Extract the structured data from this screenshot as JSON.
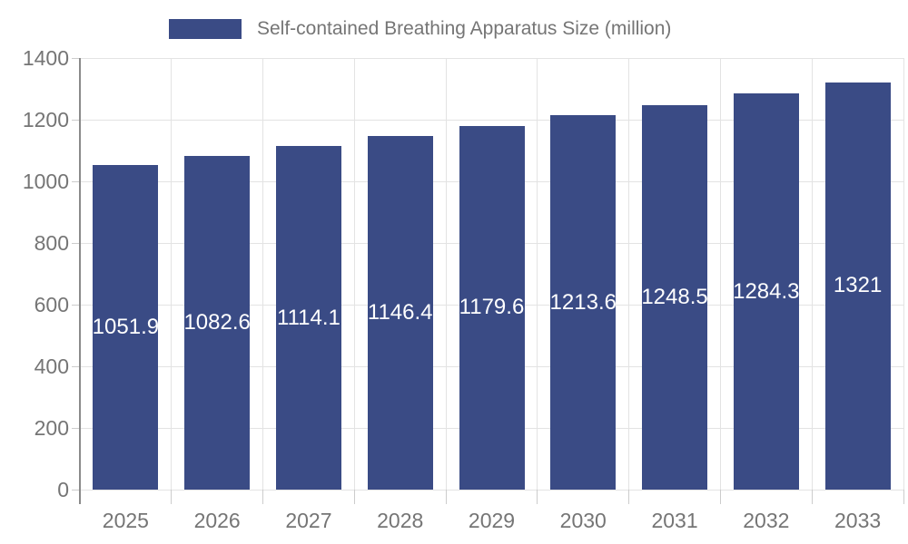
{
  "legend": {
    "label": "Self-contained Breathing Apparatus Size (million)"
  },
  "chart_data": {
    "type": "bar",
    "title": "Self-contained Breathing Apparatus Size (million)",
    "series_name": "Self-contained Breathing Apparatus Size (million)",
    "categories": [
      "2025",
      "2026",
      "2027",
      "2028",
      "2029",
      "2030",
      "2031",
      "2032",
      "2033"
    ],
    "values": [
      1051.9,
      1082.6,
      1114.1,
      1146.4,
      1179.6,
      1213.6,
      1248.5,
      1284.3,
      1321
    ],
    "value_labels": [
      "1051.9",
      "1082.6",
      "1114.1",
      "1146.4",
      "1179.6",
      "1213.6",
      "1248.5",
      "1284.3",
      "1321"
    ],
    "xlabel": "",
    "ylabel": "",
    "ylim": [
      0,
      1400
    ],
    "ytick_interval": 200,
    "ytick_labels": [
      "0",
      "200",
      "400",
      "600",
      "800",
      "1000",
      "1200",
      "1400"
    ],
    "grid": true,
    "legend_position": "top",
    "value_label_position": "inside-center",
    "colors": {
      "bar": "#3A4B85",
      "grid": "#e3e3e3",
      "axis_line": "#8a8a8a",
      "tick": "#cccccc",
      "axis_text": "#757575",
      "value_label_text": "#ffffff",
      "background": "#ffffff"
    }
  }
}
